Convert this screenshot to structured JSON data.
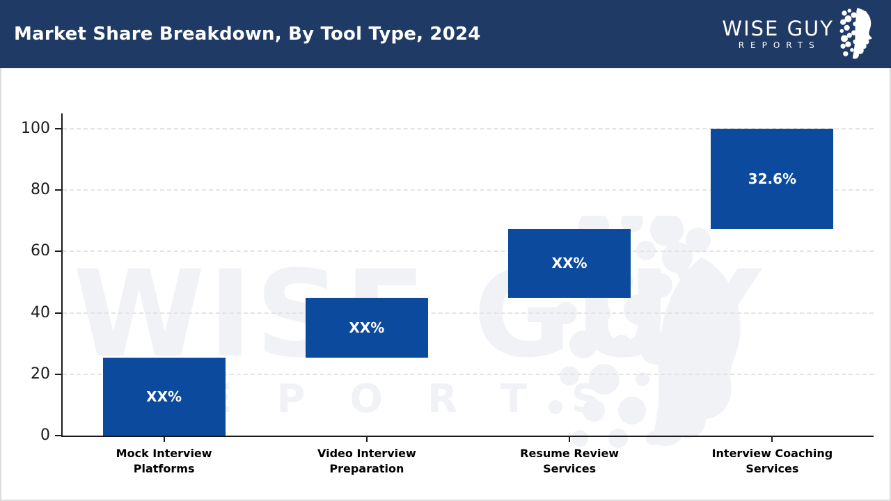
{
  "header": {
    "title": "Market Share Breakdown, By Tool Type, 2024",
    "logo": {
      "line1": "WISE GUY",
      "line2": "REPORTS",
      "icon": "dot-face-profile-icon"
    }
  },
  "watermark": {
    "line1": "WISE GUY",
    "line2": "REPORTS",
    "icon": "dot-face-watermark-icon"
  },
  "chart_data": {
    "type": "bar",
    "subtype": "waterfall",
    "title": "Market Share Breakdown, By Tool Type, 2024",
    "categories": [
      "Mock Interview\nPlatforms",
      "Video Interview\nPreparation",
      "Resume Review\nServices",
      "Interview Coaching\nServices"
    ],
    "segments": [
      {
        "category": "Mock Interview Platforms",
        "label": "XX%",
        "start": 0,
        "end": 25.5
      },
      {
        "category": "Video Interview Preparation",
        "label": "XX%",
        "start": 25.5,
        "end": 44.9
      },
      {
        "category": "Resume Review Services",
        "label": "XX%",
        "start": 44.9,
        "end": 67.4
      },
      {
        "category": "Interview Coaching Services",
        "label": "32.6%",
        "start": 67.4,
        "end": 100
      }
    ],
    "yticks": [
      0,
      20,
      40,
      60,
      80,
      100
    ],
    "ylim": [
      0,
      105
    ],
    "xlabel": "",
    "ylabel": "",
    "grid": "horizontal-dashed",
    "legend": "none",
    "bar_color": "#0c4a9e",
    "bar_label_color": "#ffffff"
  },
  "colors": {
    "header_bg": "#203a66",
    "bar": "#0c4a9e",
    "axis": "#1a1a1a",
    "gridline": "#e3e3e3",
    "watermark": "#f1f2f5",
    "border": "#dcdcdc"
  }
}
